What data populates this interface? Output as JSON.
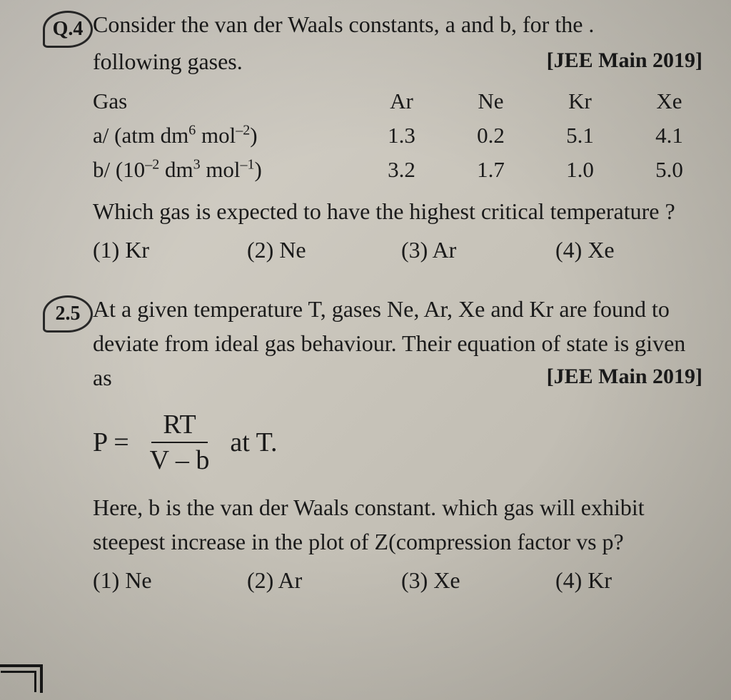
{
  "q4": {
    "marker": "Q.4",
    "line1": "Consider the van der Waals constants, a and b, for the .",
    "line2": "following gases.",
    "tag": "[JEE Main 2019]",
    "table": {
      "header_label": "Gas",
      "row_a_label": "a/ (atm dm⁶ mol⁻²)",
      "row_b_label": "b/ (10⁻² dm³ mol⁻¹)",
      "cols": [
        "Ar",
        "Ne",
        "Kr",
        "Xe"
      ],
      "row_a": [
        "1.3",
        "0.2",
        "5.1",
        "4.1"
      ],
      "row_b": [
        "3.2",
        "1.7",
        "1.0",
        "5.0"
      ]
    },
    "followup": "Which gas is expected to have the highest critical temperature ?",
    "options": [
      "(1) Kr",
      "(2) Ne",
      "(3) Ar",
      "(4) Xe"
    ]
  },
  "q5": {
    "marker": "2.5",
    "line1": "At a given temperature T, gases Ne, Ar, Xe and Kr are found to deviate from ideal gas behaviour. Their equation of state is given as",
    "tag": "[JEE Main 2019]",
    "formula_lhs": "P =",
    "formula_top": "RT",
    "formula_bot": "V – b",
    "formula_rhs": "at T.",
    "followup": "Here, b is the van der Waals constant. which gas will exhibit steepest increase in the plot of Z(compression factor vs p?",
    "options": [
      "(1) Ne",
      "(2) Ar",
      "(3) Xe",
      "(4) Kr"
    ]
  },
  "style": {
    "bg_start": "#d8d4cc",
    "bg_end": "#b8b4aa",
    "text_color": "#1a1a1a",
    "body_fontsize": 32,
    "marker_fontsize": 28,
    "formula_fontsize": 38
  }
}
